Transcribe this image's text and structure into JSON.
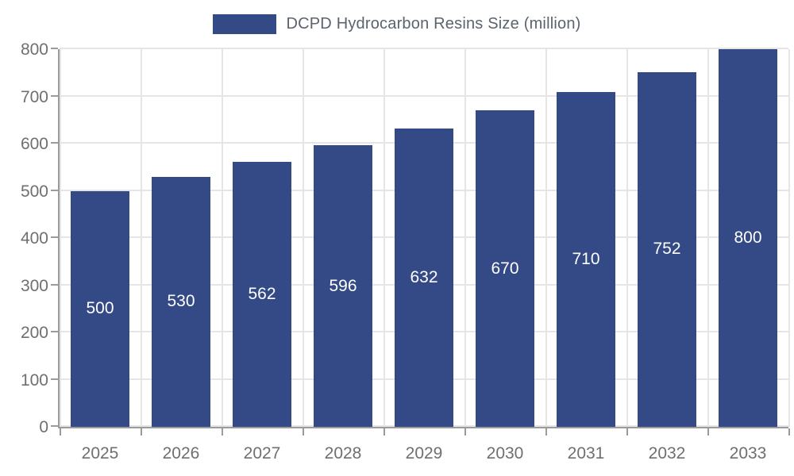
{
  "legend": {
    "label": "DCPD Hydrocarbon Resins Size (million)"
  },
  "chart_data": {
    "type": "bar",
    "title": "DCPD Hydrocarbon Resins Size (million)",
    "series_name": "DCPD Hydrocarbon Resins Size (million)",
    "categories": [
      "2025",
      "2026",
      "2027",
      "2028",
      "2029",
      "2030",
      "2031",
      "2032",
      "2033"
    ],
    "values": [
      500,
      530,
      562,
      596,
      632,
      670,
      710,
      752,
      800
    ],
    "value_labels": [
      "500",
      "530",
      "562",
      "596",
      "632",
      "670",
      "710",
      "752",
      "800"
    ],
    "xlabel": "",
    "ylabel": "",
    "ylim": [
      0,
      800
    ],
    "yticks": [
      0,
      100,
      200,
      300,
      400,
      500,
      600,
      700,
      800
    ],
    "ytick_labels": [
      "0",
      "100",
      "200",
      "300",
      "400",
      "500",
      "600",
      "700",
      "800"
    ],
    "grid": true,
    "legend_position": "top",
    "colors": {
      "bar": "#344a87",
      "bar_value_text": "#ffffff",
      "axis_spine": "#9b9b9b",
      "gridline": "#e5e5e5",
      "tick_text": "#6f6f6f",
      "legend_text": "#5b636d"
    }
  }
}
